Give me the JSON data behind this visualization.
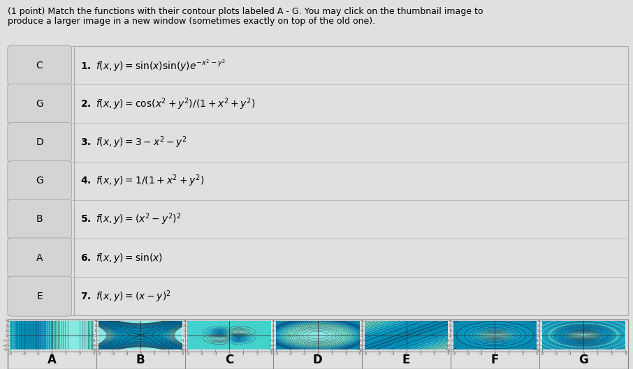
{
  "title_line1": "(1 point) Match the functions with their contour plots labeled A - G. You may click on the thumbnail image to",
  "title_line2": "produce a larger image in a new window (sometimes exactly on top of the old one).",
  "answers": [
    "C",
    "G",
    "D",
    "G",
    "B",
    "A",
    "E"
  ],
  "plot_labels": [
    "A",
    "B",
    "C",
    "D",
    "E",
    "F",
    "G"
  ],
  "bg_color": "#00e0e0",
  "outer_bg": "#e0e0e0",
  "table_row_bg": "#e8e8e8",
  "answer_box_color": "#d4d4d4",
  "row_line_color": "#c0c0c0",
  "title_fontsize": 9.0,
  "answer_fontsize": 10,
  "func_fontsize": 10,
  "label_fontsize": 12
}
